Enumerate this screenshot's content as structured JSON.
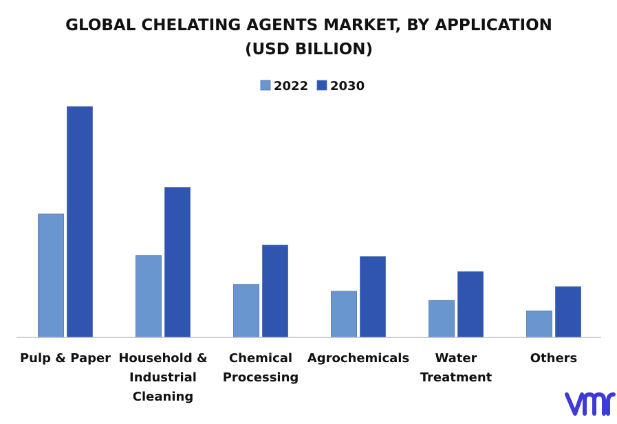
{
  "chart_data": {
    "type": "bar",
    "title": [
      "GLOBAL CHELATING AGENTS MARKET, BY APPLICATION",
      "(USD BILLION)"
    ],
    "categories": [
      [
        "Pulp & Paper"
      ],
      [
        "Household &",
        "Industrial",
        "Cleaning"
      ],
      [
        "Chemical",
        "Processing"
      ],
      [
        "Agrochemicals"
      ],
      [
        "Water",
        "Treatment"
      ],
      [
        "Others"
      ]
    ],
    "series": [
      {
        "name": "2022",
        "color": "#6a96cf",
        "values": [
          5.35,
          3.55,
          2.3,
          2.0,
          1.6,
          1.15
        ]
      },
      {
        "name": "2030",
        "color": "#2f55b0",
        "values": [
          10.0,
          6.5,
          4.0,
          3.5,
          2.85,
          2.2
        ]
      }
    ],
    "ylim": [
      0,
      10.0
    ],
    "grid": false,
    "legend_position": "top-center",
    "xlabel": "",
    "ylabel": ""
  },
  "brand": {
    "logo_icon": "vmr-logo-icon",
    "logo_color": "#3d3ad6"
  }
}
